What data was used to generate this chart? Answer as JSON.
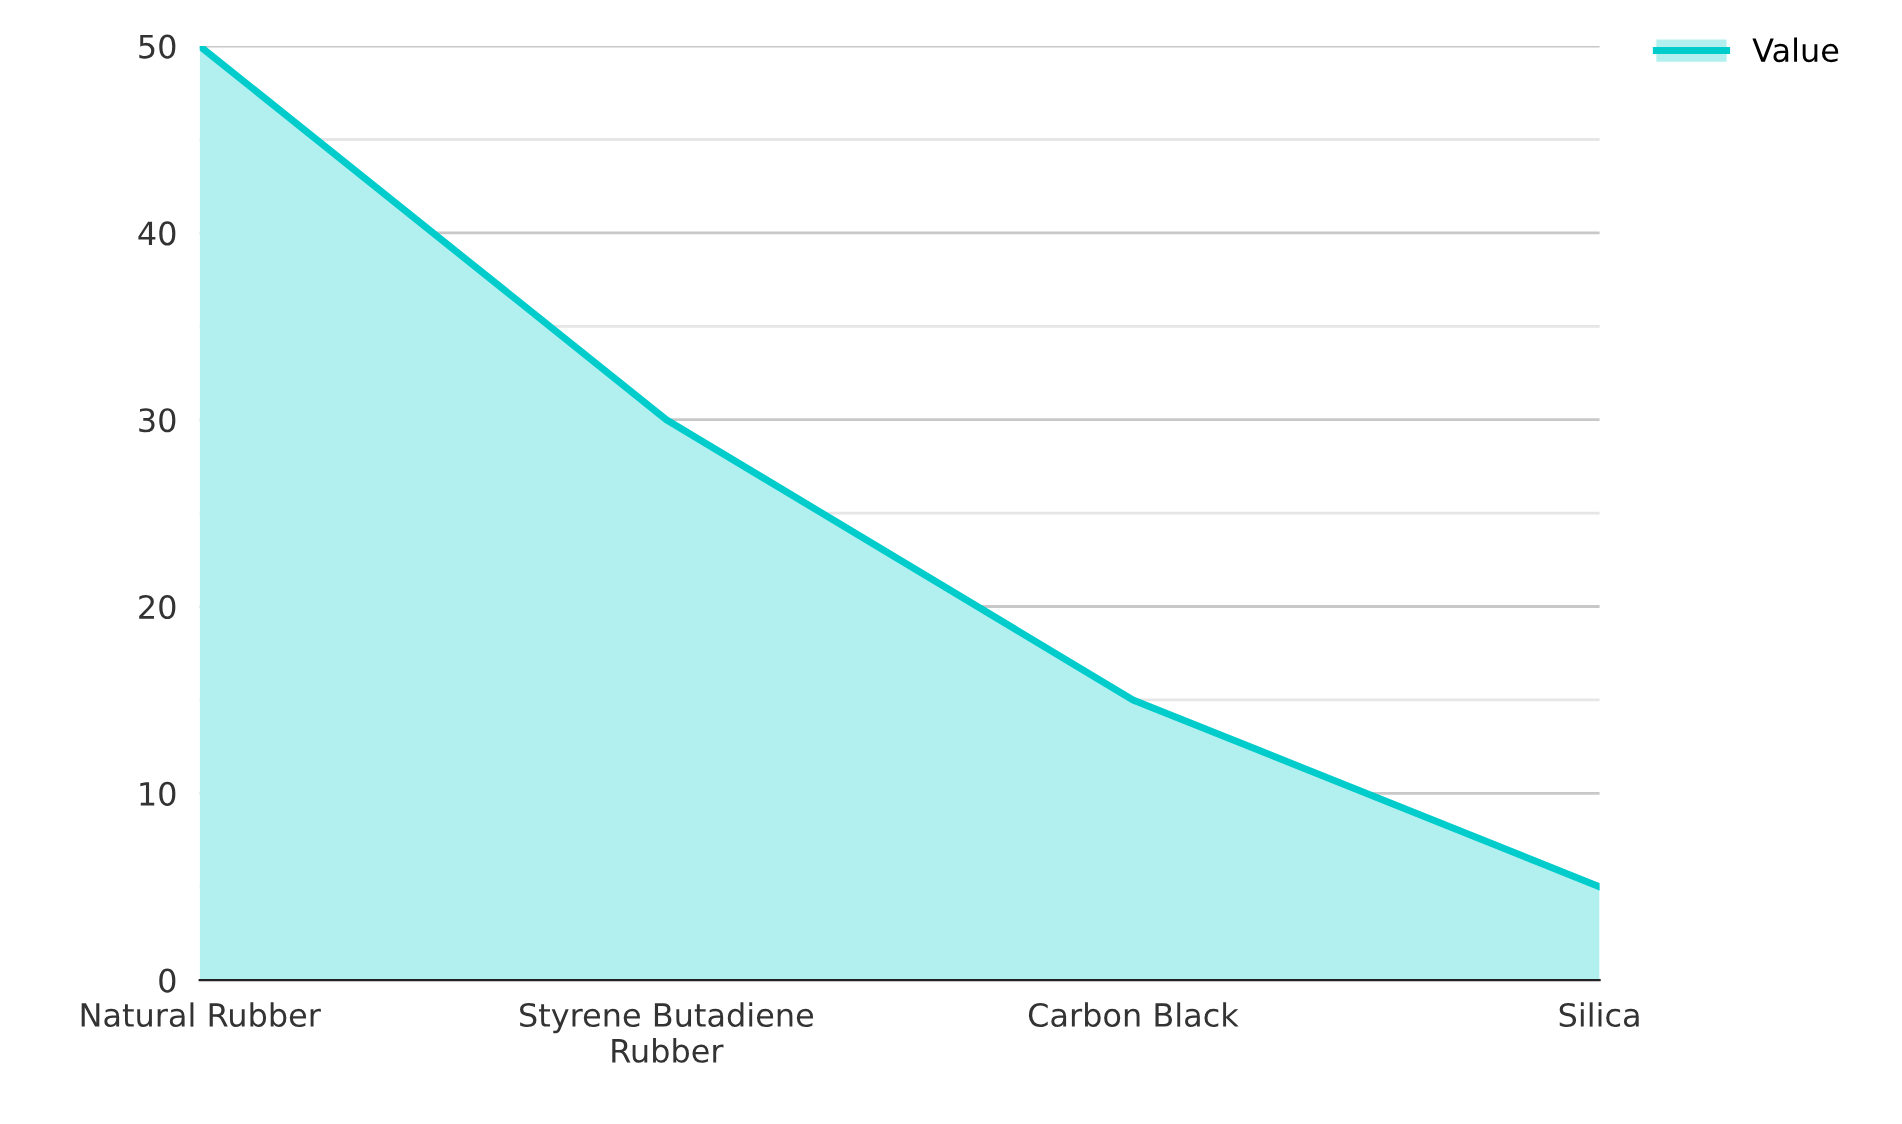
{
  "chart_data": {
    "type": "area",
    "categories": [
      "Natural Rubber",
      "Styrene Butadiene Rubber",
      "Carbon Black",
      "Silica"
    ],
    "series": [
      {
        "name": "Value",
        "color": "#00cccc",
        "values": [
          50,
          30,
          15,
          5
        ]
      }
    ],
    "ylim": [
      0,
      50
    ],
    "yticks": [
      0,
      {
        "value": 5,
        "label": null
      },
      10,
      {
        "value": 15,
        "label": null
      },
      20,
      {
        "value": 25,
        "label": null
      },
      30,
      {
        "value": 35,
        "label": null
      },
      40,
      {
        "value": 45,
        "label": null
      },
      50
    ],
    "grid": "y",
    "legend": "top right"
  }
}
